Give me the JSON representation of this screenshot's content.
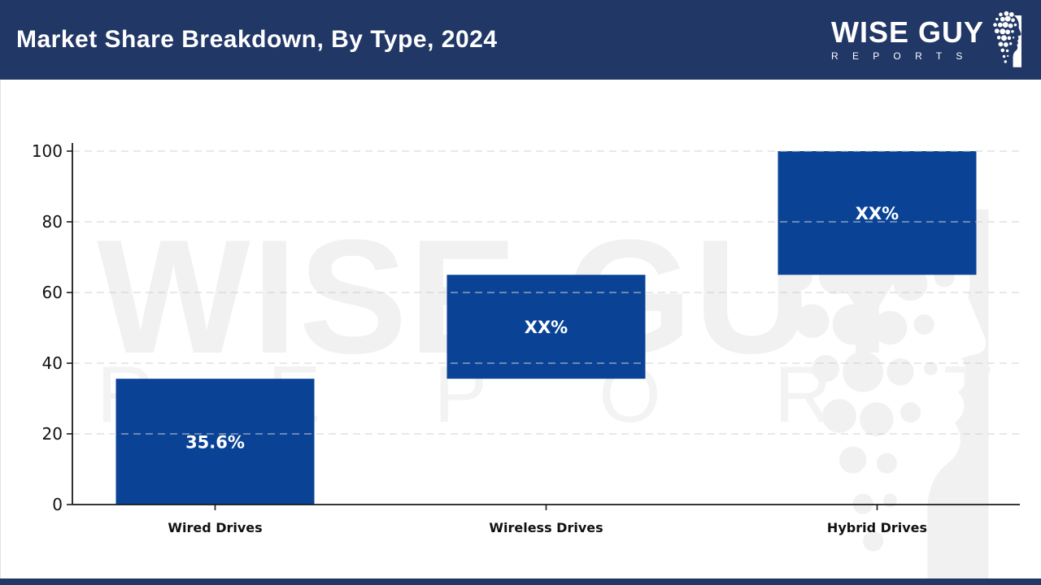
{
  "header": {
    "title": "Market Share Breakdown, By Type, 2024",
    "bg_color": "#213766",
    "logo": {
      "name": "WISE GUY",
      "subtitle": "R E P O R T S"
    }
  },
  "watermark": {
    "line1": "WISE GUY",
    "line2": "R E P O R T S"
  },
  "footer": {
    "bg_color": "#213766"
  },
  "chart_data": {
    "type": "bar",
    "subtype": "waterfall",
    "title": "Market Share Breakdown, By Type, 2024",
    "categories": [
      "Wired Drives",
      "Wireless Drives",
      "Hybrid Drives"
    ],
    "segments": [
      {
        "category": "Wired Drives",
        "start": 0,
        "end": 35.6,
        "label": "35.6%"
      },
      {
        "category": "Wireless Drives",
        "start": 35.6,
        "end": 65,
        "label": "XX%"
      },
      {
        "category": "Hybrid Drives",
        "start": 65,
        "end": 100,
        "label": "XX%"
      }
    ],
    "xlabel": "",
    "ylabel": "",
    "ylim": [
      0,
      100
    ],
    "yticks": [
      0,
      20,
      40,
      60,
      80,
      100
    ],
    "grid": "horizontal-dashed-over-bars",
    "legend": "none",
    "bar_color": "#0a4396",
    "bar_label_color": "#ffffff",
    "gridline_color": "#cfcfcf",
    "axis_color": "#1a1a1a"
  }
}
